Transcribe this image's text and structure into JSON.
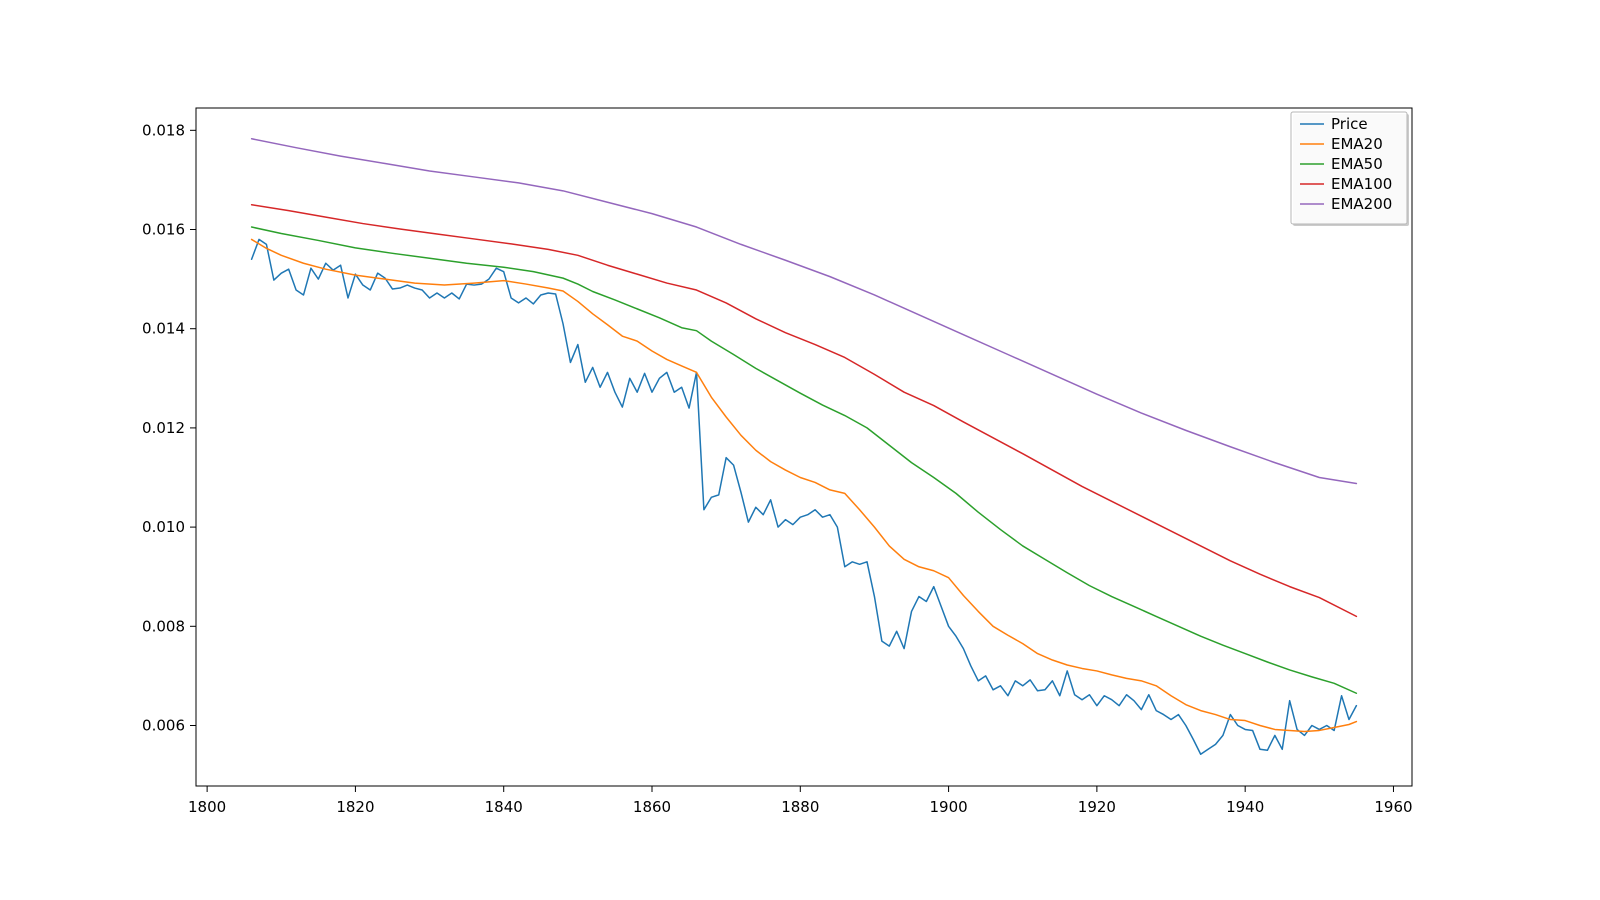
{
  "page": {
    "background": "#ffffff",
    "axis_color": "#000000",
    "legend_border_color": "#b7b7b7",
    "legend_shadow_color": "#a0a0a0",
    "legend_background": "#ffffff"
  },
  "chart_data": {
    "type": "line",
    "title": "",
    "xlabel": "",
    "ylabel": "",
    "grid": false,
    "xlim": [
      1798.5,
      1962.5
    ],
    "ylim": [
      0.00478,
      0.01845
    ],
    "x_ticks": [
      1800,
      1820,
      1840,
      1860,
      1880,
      1900,
      1920,
      1940,
      1960
    ],
    "x_tick_labels": [
      "1800",
      "1820",
      "1840",
      "1860",
      "1880",
      "1900",
      "1920",
      "1940",
      "1960"
    ],
    "y_ticks": [
      0.006,
      0.008,
      0.01,
      0.012,
      0.014,
      0.016,
      0.018
    ],
    "y_tick_labels": [
      "0.006",
      "0.008",
      "0.010",
      "0.012",
      "0.014",
      "0.016",
      "0.018"
    ],
    "legend": {
      "position": "upper right",
      "entries": [
        "Price",
        "EMA20",
        "EMA50",
        "EMA100",
        "EMA200"
      ]
    },
    "series": [
      {
        "name": "Price",
        "color": "#1f77b4",
        "x_start": 1806,
        "x_step": 1,
        "y": [
          0.0154,
          0.0158,
          0.0157,
          0.01498,
          0.01512,
          0.0152,
          0.01478,
          0.01468,
          0.01522,
          0.015,
          0.01532,
          0.01518,
          0.01528,
          0.01462,
          0.0151,
          0.01488,
          0.01478,
          0.01512,
          0.01502,
          0.0148,
          0.01482,
          0.01488,
          0.01482,
          0.01478,
          0.01462,
          0.01472,
          0.01462,
          0.01472,
          0.0146,
          0.0149,
          0.01488,
          0.0149,
          0.015,
          0.01522,
          0.01515,
          0.01462,
          0.01452,
          0.01462,
          0.0145,
          0.01468,
          0.01472,
          0.0147,
          0.0141,
          0.01332,
          0.01368,
          0.01292,
          0.01322,
          0.01282,
          0.01312,
          0.01272,
          0.01242,
          0.013,
          0.01272,
          0.0131,
          0.01272,
          0.013,
          0.01312,
          0.01272,
          0.01282,
          0.0124,
          0.01312,
          0.01035,
          0.0106,
          0.01065,
          0.0114,
          0.01125,
          0.0107,
          0.0101,
          0.0104,
          0.01025,
          0.01055,
          0.01,
          0.01015,
          0.01005,
          0.0102,
          0.01025,
          0.01035,
          0.0102,
          0.01025,
          0.01,
          0.0092,
          0.0093,
          0.00925,
          0.0093,
          0.0086,
          0.0077,
          0.0076,
          0.0079,
          0.00755,
          0.0083,
          0.0086,
          0.0085,
          0.0088,
          0.0084,
          0.008,
          0.0078,
          0.00755,
          0.0072,
          0.0069,
          0.007,
          0.00672,
          0.0068,
          0.0066,
          0.0069,
          0.0068,
          0.00692,
          0.0067,
          0.00672,
          0.0069,
          0.0066,
          0.0071,
          0.00662,
          0.00652,
          0.00662,
          0.0064,
          0.0066,
          0.00652,
          0.0064,
          0.00662,
          0.0065,
          0.00632,
          0.00662,
          0.0063,
          0.00622,
          0.00612,
          0.00622,
          0.006,
          0.00572,
          0.00542,
          0.00552,
          0.00562,
          0.0058,
          0.00622,
          0.006,
          0.00592,
          0.0059,
          0.00552,
          0.0055,
          0.0058,
          0.00552,
          0.0065,
          0.00592,
          0.0058,
          0.006,
          0.00592,
          0.006,
          0.0059,
          0.0066,
          0.00612,
          0.0064
        ]
      },
      {
        "name": "EMA20",
        "color": "#ff7f0e",
        "x": [
          1806,
          1808,
          1810,
          1813,
          1816,
          1820,
          1824,
          1828,
          1832,
          1836,
          1840,
          1843,
          1846,
          1848,
          1850,
          1852,
          1854,
          1856,
          1858,
          1860,
          1862,
          1864,
          1866,
          1868,
          1870,
          1872,
          1874,
          1876,
          1878,
          1880,
          1882,
          1884,
          1886,
          1888,
          1890,
          1892,
          1894,
          1896,
          1898,
          1900,
          1902,
          1904,
          1906,
          1908,
          1910,
          1912,
          1914,
          1916,
          1918,
          1920,
          1922,
          1924,
          1926,
          1928,
          1930,
          1932,
          1934,
          1936,
          1938,
          1940,
          1942,
          1944,
          1946,
          1948,
          1950,
          1952,
          1954,
          1955
        ],
        "y": [
          0.0158,
          0.01562,
          0.01548,
          0.01532,
          0.0152,
          0.01508,
          0.015,
          0.01492,
          0.01488,
          0.01492,
          0.01497,
          0.0149,
          0.01482,
          0.01476,
          0.01455,
          0.0143,
          0.01408,
          0.01385,
          0.01375,
          0.01355,
          0.01338,
          0.01325,
          0.01312,
          0.01262,
          0.01222,
          0.01185,
          0.01155,
          0.01132,
          0.01115,
          0.011,
          0.0109,
          0.01075,
          0.01068,
          0.01035,
          0.01,
          0.00962,
          0.00935,
          0.0092,
          0.00912,
          0.00898,
          0.00862,
          0.0083,
          0.008,
          0.00782,
          0.00765,
          0.00745,
          0.00732,
          0.00722,
          0.00715,
          0.0071,
          0.00702,
          0.00695,
          0.0069,
          0.0068,
          0.0066,
          0.00642,
          0.0063,
          0.00622,
          0.00612,
          0.0061,
          0.006,
          0.00592,
          0.0059,
          0.00588,
          0.0059,
          0.00596,
          0.00602,
          0.00608
        ]
      },
      {
        "name": "EMA50",
        "color": "#2ca02c",
        "x": [
          1806,
          1810,
          1815,
          1820,
          1825,
          1830,
          1835,
          1840,
          1844,
          1848,
          1850,
          1852,
          1855,
          1858,
          1861,
          1864,
          1866,
          1868,
          1871,
          1874,
          1877,
          1880,
          1883,
          1886,
          1889,
          1892,
          1895,
          1898,
          1901,
          1904,
          1907,
          1910,
          1913,
          1916,
          1919,
          1922,
          1925,
          1928,
          1931,
          1934,
          1937,
          1940,
          1943,
          1946,
          1949,
          1952,
          1955
        ],
        "y": [
          0.01605,
          0.01592,
          0.01578,
          0.01563,
          0.01552,
          0.01542,
          0.01532,
          0.01524,
          0.01515,
          0.01502,
          0.0149,
          0.01475,
          0.01458,
          0.0144,
          0.01422,
          0.01402,
          0.01396,
          0.01375,
          0.01348,
          0.0132,
          0.01295,
          0.0127,
          0.01246,
          0.01225,
          0.012,
          0.01165,
          0.0113,
          0.011,
          0.01068,
          0.0103,
          0.00995,
          0.00962,
          0.00935,
          0.00908,
          0.00882,
          0.0086,
          0.0084,
          0.0082,
          0.008,
          0.0078,
          0.00762,
          0.00745,
          0.00728,
          0.00712,
          0.00698,
          0.00685,
          0.00665
        ]
      },
      {
        "name": "EMA100",
        "color": "#d62728",
        "x": [
          1806,
          1811,
          1816,
          1821,
          1826,
          1831,
          1836,
          1841,
          1846,
          1850,
          1854,
          1858,
          1862,
          1866,
          1870,
          1874,
          1878,
          1882,
          1886,
          1890,
          1894,
          1898,
          1902,
          1906,
          1910,
          1914,
          1918,
          1922,
          1926,
          1930,
          1934,
          1938,
          1942,
          1946,
          1950,
          1955
        ],
        "y": [
          0.0165,
          0.01638,
          0.01625,
          0.01612,
          0.01601,
          0.01591,
          0.01581,
          0.01571,
          0.0156,
          0.01548,
          0.01528,
          0.0151,
          0.01492,
          0.01478,
          0.01452,
          0.0142,
          0.01392,
          0.01368,
          0.01342,
          0.01308,
          0.01272,
          0.01245,
          0.01212,
          0.0118,
          0.01148,
          0.01115,
          0.01082,
          0.01052,
          0.01022,
          0.00992,
          0.00962,
          0.00932,
          0.00905,
          0.0088,
          0.00858,
          0.0082
        ]
      },
      {
        "name": "EMA200",
        "color": "#9467bd",
        "x": [
          1806,
          1812,
          1818,
          1824,
          1830,
          1836,
          1842,
          1848,
          1854,
          1860,
          1866,
          1872,
          1878,
          1884,
          1890,
          1896,
          1902,
          1908,
          1914,
          1920,
          1926,
          1932,
          1938,
          1944,
          1950,
          1955
        ],
        "y": [
          0.01783,
          0.01765,
          0.01748,
          0.01733,
          0.01718,
          0.01706,
          0.01694,
          0.01678,
          0.01655,
          0.01632,
          0.01605,
          0.0157,
          0.01538,
          0.01505,
          0.01468,
          0.01428,
          0.01388,
          0.01348,
          0.01308,
          0.01268,
          0.0123,
          0.01195,
          0.01162,
          0.0113,
          0.011,
          0.01088
        ]
      }
    ]
  }
}
